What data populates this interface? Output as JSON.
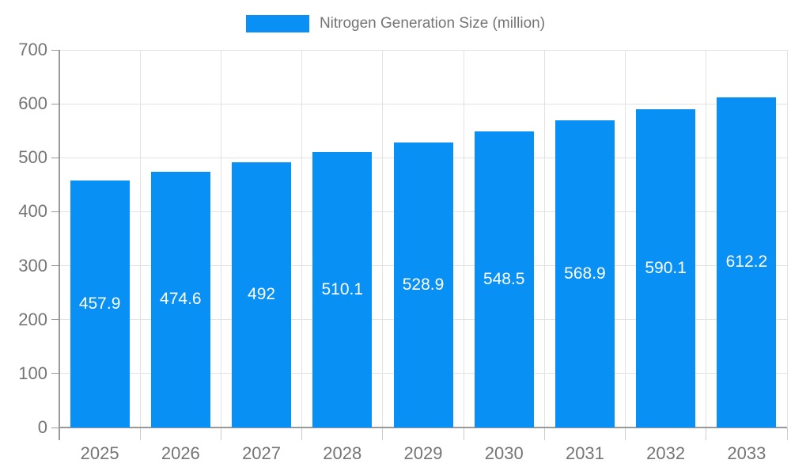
{
  "chart_data": {
    "type": "bar",
    "title": "Nitrogen Generation Size (million)",
    "legend_position": "top",
    "categories": [
      "2025",
      "2026",
      "2027",
      "2028",
      "2029",
      "2030",
      "2031",
      "2032",
      "2033"
    ],
    "values": [
      457.9,
      474.6,
      492,
      510.1,
      528.9,
      548.5,
      568.9,
      590.1,
      612.2
    ],
    "value_labels": [
      "457.9",
      "474.6",
      "492",
      "510.1",
      "528.9",
      "548.5",
      "568.9",
      "590.1",
      "612.2"
    ],
    "xlabel": "",
    "ylabel": "",
    "ylim": [
      0,
      700
    ],
    "y_ticks": [
      0,
      100,
      200,
      300,
      400,
      500,
      600,
      700
    ],
    "grid": true,
    "colors": {
      "bar": "#0890f4",
      "axis": "#999999",
      "grid": "#e2e2e2",
      "boundary_tick": "#cccccc",
      "text": "#757575",
      "bar_label": "#ffffff",
      "background": "#ffffff"
    }
  }
}
